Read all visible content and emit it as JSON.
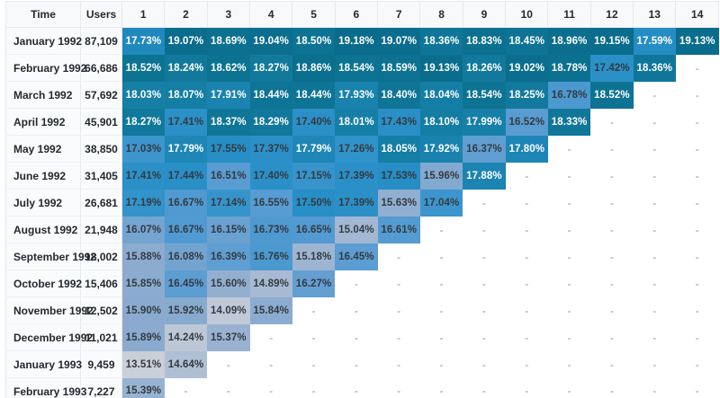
{
  "chart_data": {
    "type": "heatmap",
    "description": "Cohort retention table: monthly cohorts vs periods 1-14",
    "columns": [
      "Time",
      "Users",
      "1",
      "2",
      "3",
      "4",
      "5",
      "6",
      "7",
      "8",
      "9",
      "10",
      "11",
      "12",
      "13",
      "14"
    ],
    "empty_marker": "-",
    "value_suffix": "%",
    "white_text_threshold": 17.57,
    "rows": [
      {
        "time": "January 1992",
        "users": "87,109",
        "values": [
          17.73,
          19.07,
          18.69,
          19.04,
          18.5,
          19.18,
          19.07,
          18.36,
          18.83,
          18.45,
          18.96,
          19.15,
          17.59,
          19.13
        ]
      },
      {
        "time": "February 1992",
        "users": "66,686",
        "values": [
          18.52,
          18.24,
          18.62,
          18.27,
          18.86,
          18.54,
          18.59,
          19.13,
          18.26,
          19.02,
          18.78,
          17.42,
          18.36,
          null
        ]
      },
      {
        "time": "March 1992",
        "users": "57,692",
        "values": [
          18.03,
          18.07,
          17.91,
          18.44,
          18.44,
          17.93,
          18.4,
          18.04,
          18.54,
          18.25,
          16.78,
          18.52,
          null,
          null
        ]
      },
      {
        "time": "April 1992",
        "users": "45,901",
        "values": [
          18.27,
          17.41,
          18.37,
          18.29,
          17.4,
          18.01,
          17.43,
          18.1,
          17.99,
          16.52,
          18.33,
          null,
          null,
          null
        ]
      },
      {
        "time": "May 1992",
        "users": "38,850",
        "values": [
          17.03,
          17.79,
          17.55,
          17.37,
          17.79,
          17.26,
          18.05,
          17.92,
          16.37,
          17.8,
          null,
          null,
          null,
          null
        ]
      },
      {
        "time": "June 1992",
        "users": "31,405",
        "values": [
          17.41,
          17.44,
          16.51,
          17.4,
          17.15,
          17.39,
          17.53,
          15.96,
          17.88,
          null,
          null,
          null,
          null,
          null
        ]
      },
      {
        "time": "July 1992",
        "users": "26,681",
        "values": [
          17.19,
          16.67,
          17.14,
          16.55,
          17.5,
          17.39,
          15.63,
          17.04,
          null,
          null,
          null,
          null,
          null,
          null
        ]
      },
      {
        "time": "August 1992",
        "users": "21,948",
        "values": [
          16.07,
          16.67,
          16.15,
          16.73,
          16.65,
          15.04,
          16.61,
          null,
          null,
          null,
          null,
          null,
          null,
          null
        ]
      },
      {
        "time": "September 1992",
        "users": "18,002",
        "values": [
          15.88,
          16.08,
          16.39,
          16.76,
          15.18,
          16.45,
          null,
          null,
          null,
          null,
          null,
          null,
          null,
          null
        ]
      },
      {
        "time": "October 1992",
        "users": "15,406",
        "values": [
          15.85,
          16.45,
          15.6,
          14.89,
          16.27,
          null,
          null,
          null,
          null,
          null,
          null,
          null,
          null,
          null
        ]
      },
      {
        "time": "November 1992",
        "users": "12,502",
        "values": [
          15.9,
          15.92,
          14.09,
          15.84,
          null,
          null,
          null,
          null,
          null,
          null,
          null,
          null,
          null,
          null
        ]
      },
      {
        "time": "December 1992",
        "users": "11,021",
        "values": [
          15.89,
          14.24,
          15.37,
          null,
          null,
          null,
          null,
          null,
          null,
          null,
          null,
          null,
          null,
          null
        ]
      },
      {
        "time": "January 1993",
        "users": "9,459",
        "values": [
          13.51,
          14.64,
          null,
          null,
          null,
          null,
          null,
          null,
          null,
          null,
          null,
          null,
          null,
          null
        ]
      },
      {
        "time": "February 1993",
        "users": "7,227",
        "values": [
          15.39,
          null,
          null,
          null,
          null,
          null,
          null,
          null,
          null,
          null,
          null,
          null,
          null,
          null
        ]
      }
    ],
    "colors": {
      "scale_stops": [
        [
          13.45,
          "#cbd0d9"
        ],
        [
          14.3,
          "#bcc7d6"
        ],
        [
          15.1,
          "#a0b6d2"
        ],
        [
          15.9,
          "#8aabcf"
        ],
        [
          16.15,
          "#6aa1d1"
        ],
        [
          16.6,
          "#559bd2"
        ],
        [
          17.25,
          "#3092ca"
        ],
        [
          17.6,
          "#248dc4"
        ],
        [
          18.05,
          "#157ea5"
        ],
        [
          18.5,
          "#0d7393"
        ],
        [
          19.2,
          "#0a6c8c"
        ]
      ],
      "text_on_dark": "#ffffff",
      "text_on_light": "#343a40",
      "empty_text": "#8d939b",
      "label_bg": "#fafbfc",
      "header_bg": "#f8f9fa",
      "border": "#e7eaee"
    }
  }
}
